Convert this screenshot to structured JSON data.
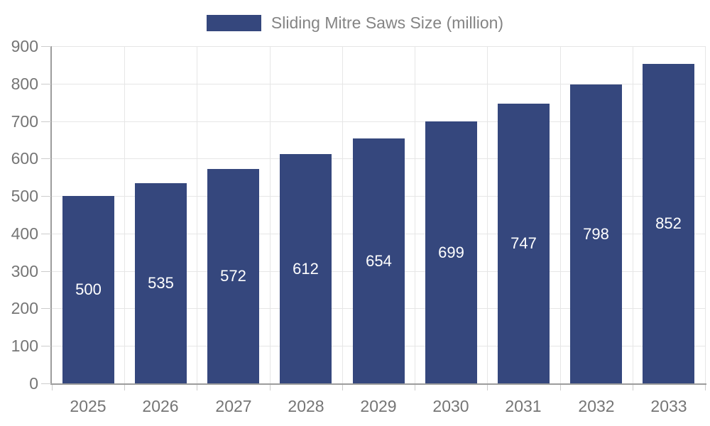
{
  "chart_data": {
    "type": "bar",
    "title": "Sliding Mitre Saws Size (million)",
    "categories": [
      "2025",
      "2026",
      "2027",
      "2028",
      "2029",
      "2030",
      "2031",
      "2032",
      "2033"
    ],
    "values": [
      500,
      535,
      572,
      612,
      654,
      699,
      747,
      798,
      852
    ],
    "xlabel": "",
    "ylabel": "",
    "ylim": [
      0,
      900
    ],
    "yticks": [
      0,
      100,
      200,
      300,
      400,
      500,
      600,
      700,
      800,
      900
    ],
    "grid": true,
    "legend_position": "top-center",
    "bar_labels_inside": true
  },
  "legend": {
    "label": "Sliding Mitre Saws Size (million)"
  },
  "colors": {
    "bar": "#35477d",
    "bar_value_text": "#ffffff",
    "axis_line": "#9c9c9c",
    "grid_line": "#e6e6e6",
    "tick_line": "#cccccc",
    "axis_label_text": "#757575",
    "legend_text": "#848484",
    "background": "#ffffff"
  }
}
